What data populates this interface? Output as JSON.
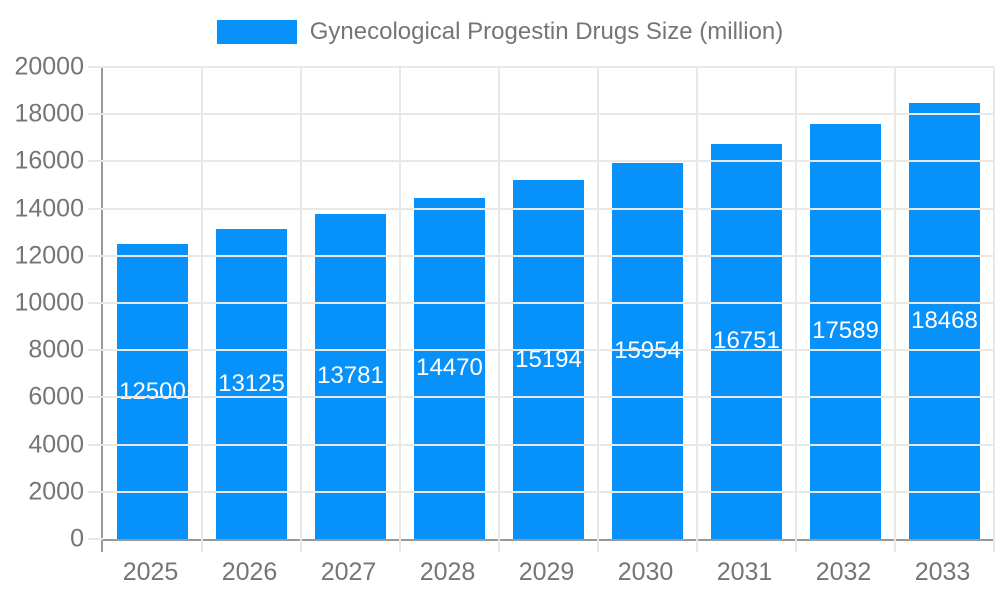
{
  "chart_data": {
    "type": "bar",
    "title": "Gynecological Progestin Drugs Size (million)",
    "categories": [
      "2025",
      "2026",
      "2027",
      "2028",
      "2029",
      "2030",
      "2031",
      "2032",
      "2033"
    ],
    "series": [
      {
        "name": "Gynecological Progestin Drugs Size (million)",
        "values": [
          12500,
          13125,
          13781,
          14470,
          15194,
          15954,
          16751,
          17589,
          18468
        ]
      }
    ],
    "xlabel": "",
    "ylabel": "",
    "ylim": [
      0,
      20000
    ],
    "yticks": [
      0,
      2000,
      4000,
      6000,
      8000,
      10000,
      12000,
      14000,
      16000,
      18000,
      20000
    ],
    "grid": true,
    "legend_position": "top",
    "value_labels_position": "inside-center"
  },
  "colors": {
    "bar": "#0791fa",
    "value_label_text": "#ffffff",
    "axis_line": "#999999",
    "gridline": "#e8e8e8",
    "tick_text": "#757575",
    "legend_text": "#757575",
    "background": "#ffffff"
  }
}
